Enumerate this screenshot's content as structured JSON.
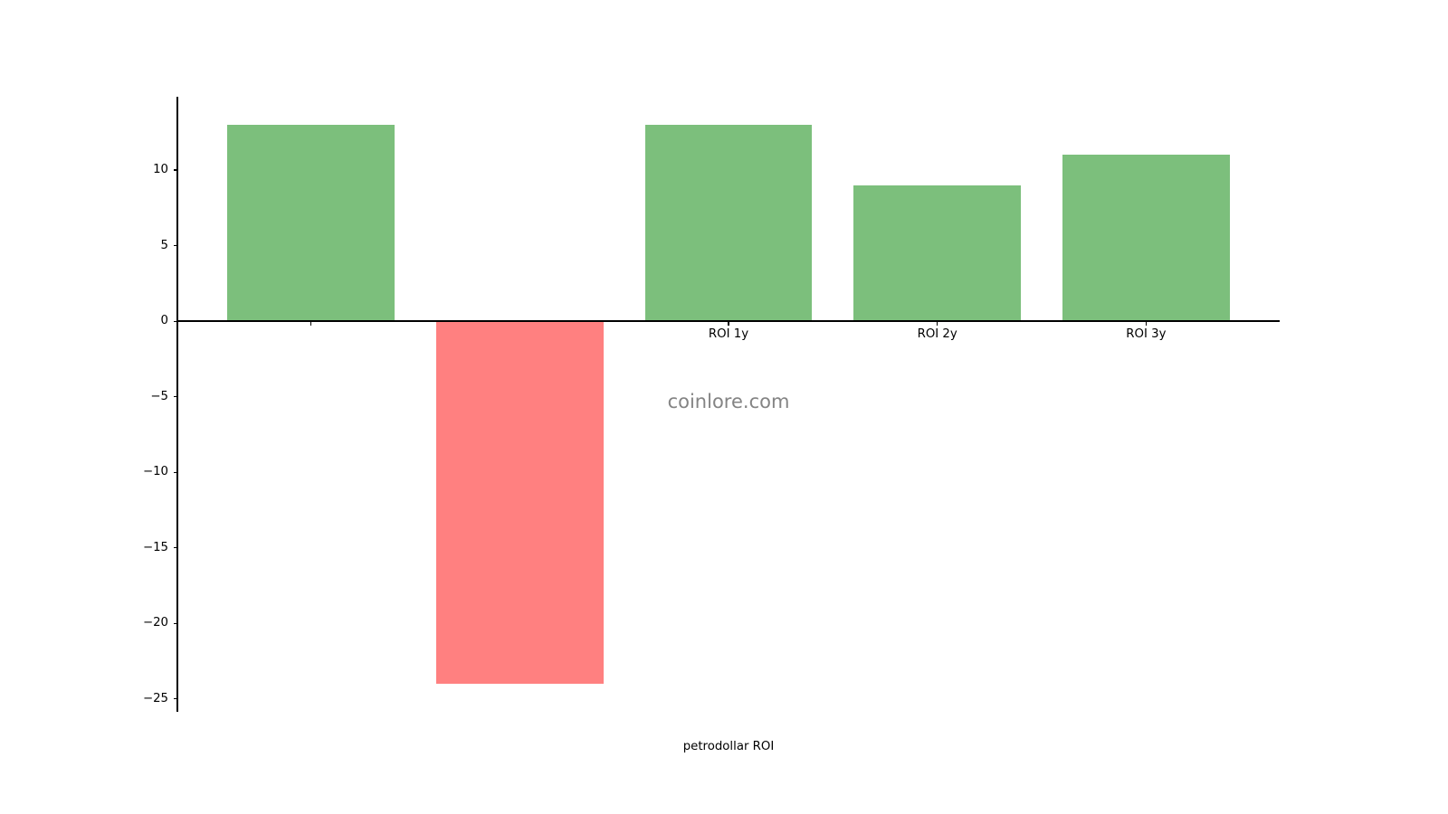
{
  "watermark": "coinlore.com",
  "chart_data": {
    "type": "bar",
    "title": "",
    "xlabel": "petrodollar ROI",
    "ylabel": "",
    "categories": [
      "",
      "",
      "ROI 1y",
      "ROI 2y",
      "ROI 3y"
    ],
    "values": [
      13,
      -24,
      13,
      9,
      11
    ],
    "series": [
      {
        "name": "petrodollar ROI",
        "values": [
          13,
          -24,
          13,
          9,
          11
        ]
      }
    ],
    "yticks": [
      10,
      5,
      0,
      -5,
      -10,
      -15,
      -20,
      -25
    ],
    "ytick_labels": [
      "10",
      "5",
      "0",
      "−5",
      "−10",
      "−15",
      "−20",
      "−25"
    ],
    "ylim": [
      -25.85,
      14.85
    ],
    "bar_width_fraction": 0.8,
    "grid": false,
    "legend": "none",
    "colors": {
      "positive_bar": "#7cbf7c",
      "negative_bar": "#ff8080",
      "axis": "#000000",
      "tick_text": "#000000",
      "watermark": "#848484",
      "background": "#ffffff"
    }
  }
}
